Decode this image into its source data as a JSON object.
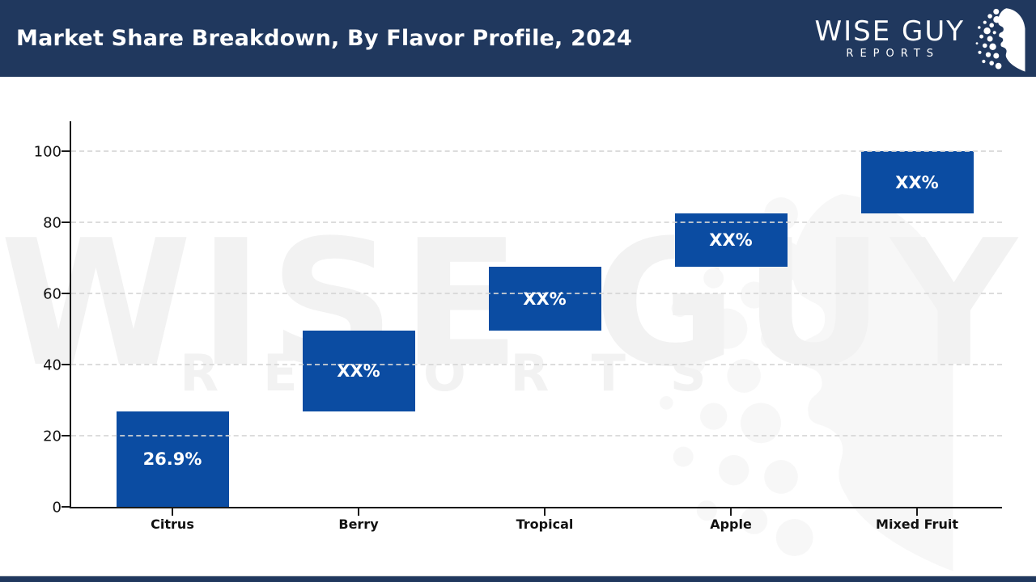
{
  "header": {
    "title": "Market Share Breakdown, By Flavor Profile, 2024",
    "bg_color": "#20385e",
    "logo": {
      "line1": "WISE GUY",
      "line2": "REPORTS"
    }
  },
  "watermark": {
    "line1": "WISE GUY",
    "line2": "REPORTS"
  },
  "chart_data": {
    "type": "bar",
    "subtype": "waterfall-floating-bars",
    "title": "Market Share Breakdown, By Flavor Profile, 2024",
    "categories": [
      "Citrus",
      "Berry",
      "Tropical",
      "Apple",
      "Mixed Fruit"
    ],
    "segments": [
      {
        "category": "Citrus",
        "start": 0,
        "end": 26.9,
        "label": "26.9%"
      },
      {
        "category": "Berry",
        "start": 26.9,
        "end": 49.5,
        "label": "XX%"
      },
      {
        "category": "Tropical",
        "start": 49.5,
        "end": 67.5,
        "label": "XX%"
      },
      {
        "category": "Apple",
        "start": 67.5,
        "end": 82.5,
        "label": "XX%"
      },
      {
        "category": "Mixed Fruit",
        "start": 82.5,
        "end": 100,
        "label": "XX%"
      }
    ],
    "ylim": [
      0,
      100
    ],
    "yticks": [
      0,
      20,
      40,
      60,
      80,
      100
    ],
    "xlabel": "",
    "ylabel": "",
    "grid": true,
    "gridline_style": "dashed",
    "gridline_color": "#d6d6d6",
    "bar_color": "#0b4ca2",
    "bar_label_color": "#ffffff",
    "legend": "none"
  }
}
